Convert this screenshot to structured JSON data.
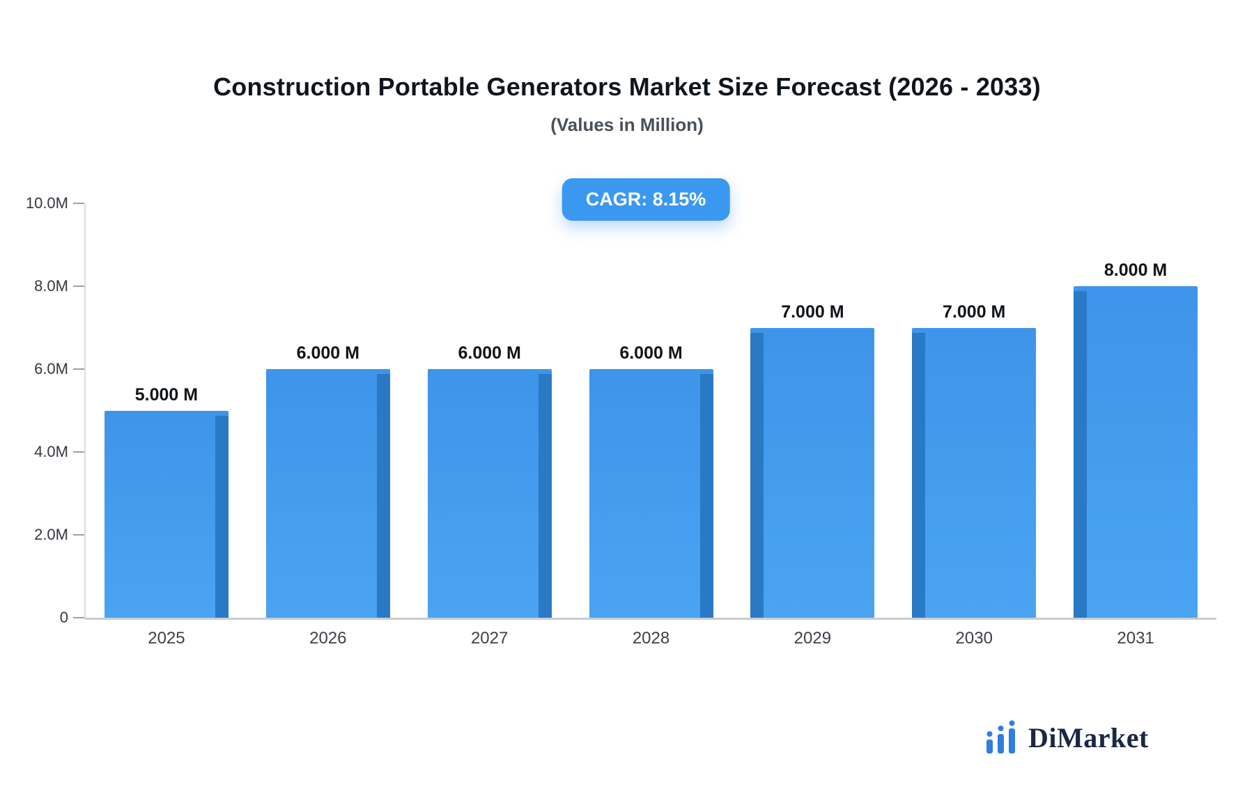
{
  "chart_data": {
    "type": "bar",
    "title": "Construction Portable Generators Market Size Forecast (2026 - 2033)",
    "subtitle": "(Values in Million)",
    "cagr_label": "CAGR: 8.15%",
    "categories": [
      "2025",
      "2026",
      "2027",
      "2028",
      "2029",
      "2030",
      "2031"
    ],
    "values": [
      5,
      6,
      6,
      6,
      7,
      7,
      8
    ],
    "value_labels": [
      "5.000 M",
      "6.000 M",
      "6.000 M",
      "6.000 M",
      "7.000 M",
      "7.000 M",
      "8.000 M"
    ],
    "unit": "Million",
    "xlabel": "",
    "ylabel": "",
    "ylim": [
      0,
      10
    ],
    "yticks": [
      0,
      2,
      4,
      6,
      8,
      10
    ],
    "ytick_labels": [
      "0",
      "2.0M",
      "4.0M",
      "6.0M",
      "8.0M",
      "10.0M"
    ],
    "grid": false,
    "legend": false,
    "accent_color": "#3b98f0",
    "bar_color_top": "#3e94ea",
    "bar_color_bottom": "#4aa4f2",
    "bar_edge_color": "#2a79c4",
    "edge_sides": [
      "right",
      "right",
      "right",
      "right",
      "left",
      "left",
      "left"
    ]
  },
  "branding": {
    "logo_text": "DiMarket"
  }
}
